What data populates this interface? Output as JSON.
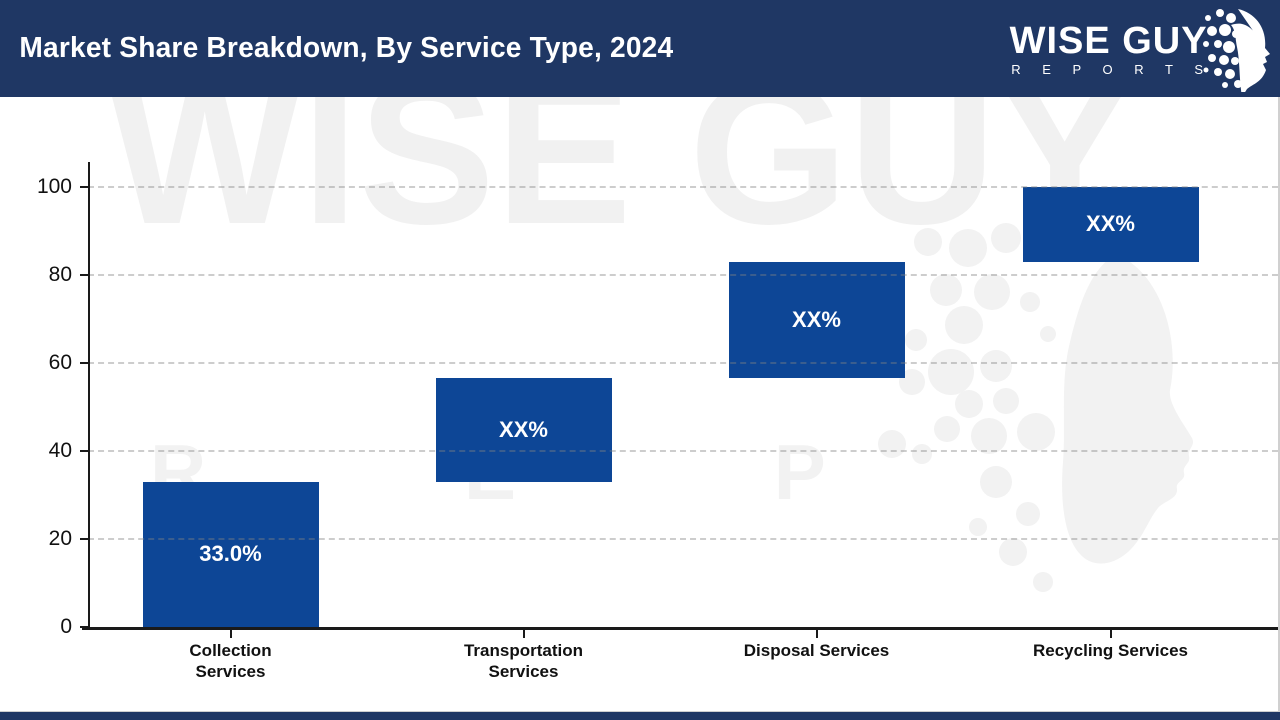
{
  "header": {
    "title": "Market Share Breakdown, By Service Type, 2024",
    "logo": {
      "line1": "WISE GUY",
      "line2": "R E P O R T S"
    }
  },
  "watermark": {
    "line1": "WISE GUY",
    "line2": "R E P O R T S"
  },
  "colors": {
    "header_bg": "#1f3764",
    "bar": "#0d4696",
    "bar_label": "#ffffff",
    "axis": "#1a1a1a",
    "watermark": "#f1f1f1"
  },
  "chart_data": {
    "type": "bar",
    "subtype": "waterfall",
    "title": "Market Share Breakdown, By Service Type, 2024",
    "categories": [
      "Collection\nServices",
      "Transportation\nServices",
      "Disposal Services",
      "Recycling Services"
    ],
    "bars": [
      {
        "category": "Collection\nServices",
        "start": 0,
        "end": 33,
        "label": "33.0%"
      },
      {
        "category": "Transportation\nServices",
        "start": 33,
        "end": 56.5,
        "label": "XX%"
      },
      {
        "category": "Disposal Services",
        "start": 56.5,
        "end": 83,
        "label": "XX%"
      },
      {
        "category": "Recycling Services",
        "start": 83,
        "end": 100,
        "label": "XX%"
      }
    ],
    "ylim": [
      0,
      100
    ],
    "yticks": [
      0,
      20,
      40,
      60,
      80,
      100
    ],
    "grid": "horizontal dashed, drawn over bars",
    "legend": "none",
    "bar_color": "#0d4696",
    "bar_label_color": "#ffffff"
  }
}
